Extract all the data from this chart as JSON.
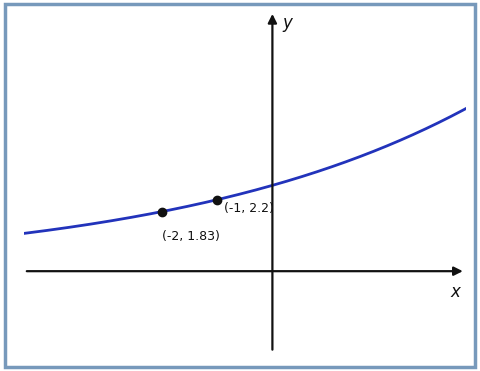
{
  "title": "",
  "xlabel": "x",
  "ylabel": "y",
  "bg_color": "#ffffff",
  "border_color": "#7799bb",
  "curve_color": "#2233bb",
  "curve_linewidth": 2.0,
  "point1": [
    -2,
    1.83
  ],
  "point2": [
    -1,
    2.2
  ],
  "label1": "(-2, 1.83)",
  "label2": "(-1, 2.2)",
  "point_color": "#111111",
  "point_size": 6,
  "axis_arrow_color": "#111111",
  "font_size_label": 11,
  "x_range": [
    -4.5,
    3.5
  ],
  "y_range": [
    -2.5,
    8.0
  ],
  "growth_factor": 1.2,
  "initial_value": 2.64
}
